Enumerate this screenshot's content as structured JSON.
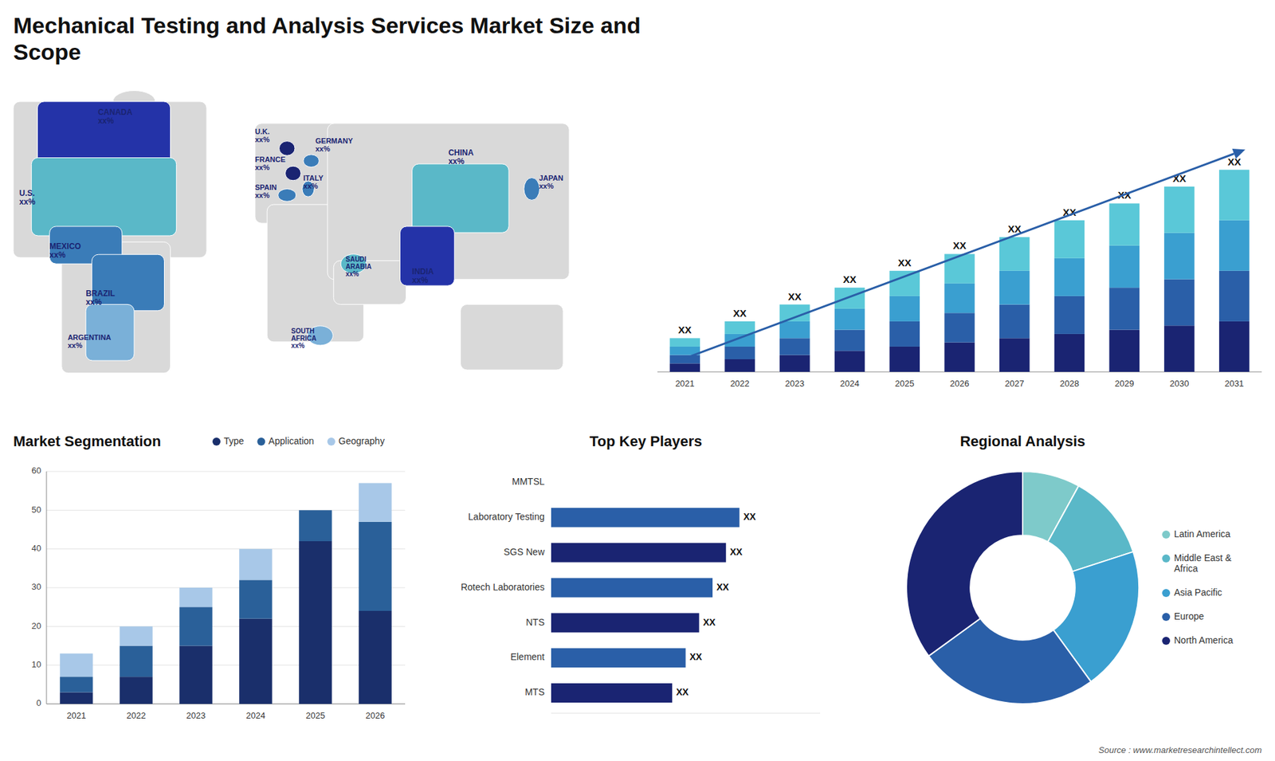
{
  "chart_data": [
    {
      "type": "map",
      "title": "Mechanical Testing and Analysis Services Market Size and\nScope",
      "annotations": [
        "CANADA\nxx%",
        "U.S.\nxx%",
        "MEXICO\nxx%",
        "BRAZIL\nxx%",
        "ARGENTINA\nxx%",
        "U.K.\nxx%",
        "FRANCE\nxx%",
        "SPAIN\nxx%",
        "GERMANY\nxx%",
        "ITALY\nxx%",
        "SAUDI\nARABIA\nxx%",
        "SOUTH\nAFRICA\nxx%",
        "CHINA\nxx%",
        "INDIA\nxx%",
        "JAPAN\nxx%"
      ],
      "colors": [
        "#2433a8",
        "#5ab8c8",
        "#3a7cb8",
        "#3a7cb8",
        "#7ab0d8",
        "#1a2472",
        "#1a2472",
        "#3a7cb8",
        "#3a7cb8",
        "#3a7cb8",
        "#5ab8c8",
        "#7ab0d8",
        "#5ab8c8",
        "#2433a8",
        "#3a7cb8"
      ]
    },
    {
      "type": "bar",
      "stacked": true,
      "categories": [
        "2021",
        "2022",
        "2023",
        "2024",
        "2025",
        "2026",
        "2027",
        "2028",
        "2029",
        "2030",
        "2031"
      ],
      "series": [
        {
          "color": "#1a2472",
          "values": [
            2,
            3,
            4,
            5,
            6,
            7,
            8,
            9,
            10,
            11,
            12
          ]
        },
        {
          "color": "#2a5fa8",
          "values": [
            2,
            3,
            4,
            5,
            6,
            7,
            8,
            9,
            10,
            11,
            12
          ]
        },
        {
          "color": "#3a9fd0",
          "values": [
            2,
            3,
            4,
            5,
            6,
            7,
            8,
            9,
            10,
            11,
            12
          ]
        },
        {
          "color": "#5ac8d8",
          "values": [
            2,
            3,
            4,
            5,
            6,
            7,
            8,
            9,
            10,
            11,
            12
          ]
        }
      ],
      "annotations": [
        "XX",
        "XX",
        "XX",
        "XX",
        "XX",
        "XX",
        "XX",
        "XX",
        "XX",
        "XX",
        "XX"
      ],
      "ylim": [
        0,
        66.24
      ],
      "tick_labels": "x",
      "grid": false
    },
    {
      "type": "bar",
      "stacked": true,
      "title": "Market Segmentation",
      "categories": [
        "2021",
        "2022",
        "2023",
        "2024",
        "2025",
        "2026"
      ],
      "series": [
        {
          "name": "Type",
          "color": "#1a2f6b",
          "values": [
            3,
            7,
            15,
            22,
            42,
            24
          ]
        },
        {
          "name": "Application",
          "color": "#2a6099",
          "values": [
            4,
            8,
            10,
            10,
            8,
            23
          ]
        },
        {
          "name": "Geography",
          "color": "#a8c8e8",
          "values": [
            6,
            5,
            5,
            8,
            0,
            10
          ]
        }
      ],
      "ylim": [
        0,
        60
      ],
      "yticks": [
        0,
        10,
        20,
        30,
        40,
        50,
        60
      ],
      "grid": true,
      "legend": "upper right"
    },
    {
      "type": "bar",
      "orientation": "horizontal",
      "title": "Top Key Players",
      "categories": [
        "MMTSL",
        "Laboratory Testing",
        "SGS New",
        "Rotech Laboratories",
        "NTS",
        "Element",
        "MTS"
      ],
      "values": [
        0,
        7,
        6.5,
        6,
        5.5,
        5,
        4.5
      ],
      "colors": [
        "#1a2472",
        "#2a5fa8",
        "#1a2472",
        "#2a5fa8",
        "#1a2472",
        "#2a5fa8",
        "#1a2472"
      ],
      "annotations": [
        "XX",
        "XX",
        "XX",
        "XX",
        "XX",
        "XX"
      ],
      "xlim": [
        0,
        10
      ],
      "tick_labels": "y",
      "grid": false
    },
    {
      "type": "pie",
      "title": "Regional Analysis",
      "categories": [
        "Latin America",
        "Middle East &\nAfrica",
        "Asia Pacific",
        "Europe",
        "North America"
      ],
      "values": [
        8,
        12,
        20,
        25,
        35
      ],
      "colors": [
        "#7ecaca",
        "#5ab8c8",
        "#3a9fd0",
        "#2a5fa8",
        "#1a2472"
      ],
      "legend": "right",
      "annotations": [
        "Source : www.marketresearchintellect.com"
      ]
    }
  ]
}
